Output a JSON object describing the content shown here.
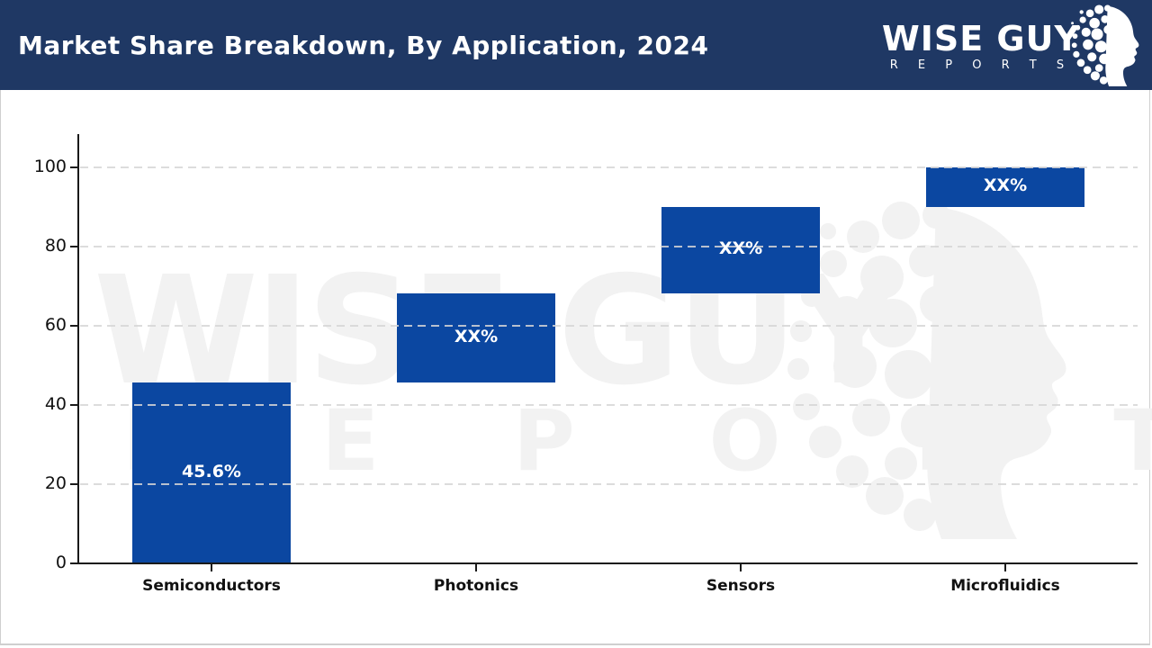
{
  "header": {
    "title": "Market Share Breakdown, By Application, 2024",
    "logo": {
      "name": "WISE GUY",
      "sub": "R E P O R T S"
    },
    "bg_color": "#1f3864"
  },
  "watermark": {
    "line1": "WISE GUY",
    "line2": "REPORTS"
  },
  "colors": {
    "header_bg": "#1f3864",
    "bar": "#0b47a1",
    "bar_label": "#ffffff",
    "grid": "#d6d6d6",
    "axis": "#1a1a1a",
    "watermark": "#f2f2f2"
  },
  "chart_data": {
    "type": "waterfall",
    "title": "Market Share Breakdown, By Application, 2024",
    "categories": [
      "Semiconductors",
      "Photonics",
      "Sensors",
      "Microfluidics"
    ],
    "segments": [
      {
        "category": "Semiconductors",
        "label": "45.6%",
        "start": 0,
        "end": 45.6
      },
      {
        "category": "Photonics",
        "label": "XX%",
        "start": 45.6,
        "end": 68.2
      },
      {
        "category": "Sensors",
        "label": "XX%",
        "start": 68.2,
        "end": 90
      },
      {
        "category": "Microfluidics",
        "label": "XX%",
        "start": 90,
        "end": 100
      }
    ],
    "yticks": [
      0,
      20,
      40,
      60,
      80,
      100
    ],
    "ylim": [
      0,
      108
    ],
    "xlabel": "",
    "ylabel": "",
    "grid": "dashed-horizontal",
    "legend": "none"
  }
}
